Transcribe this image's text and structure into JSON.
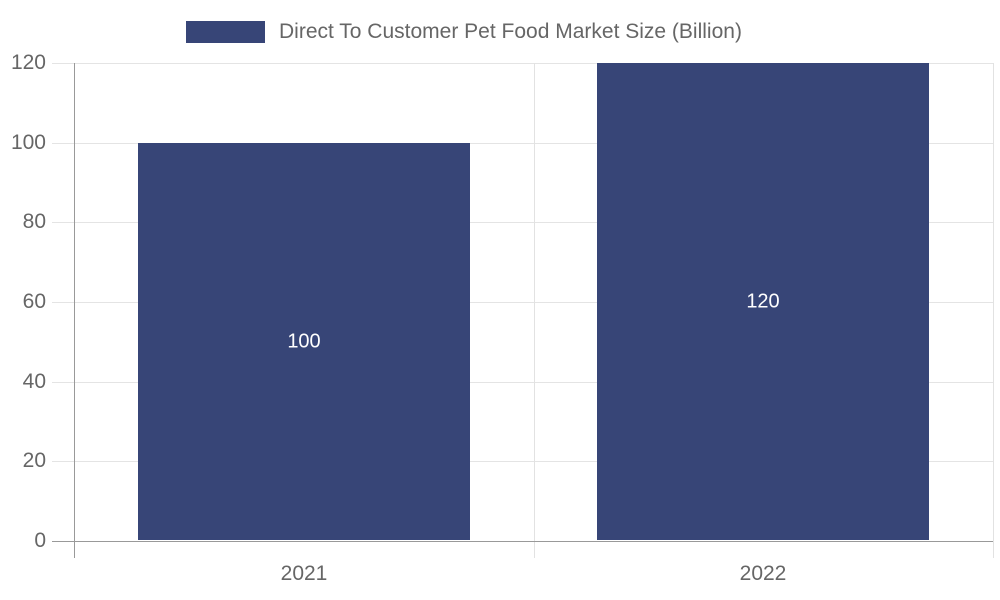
{
  "legend": {
    "label": "Direct To Customer Pet Food Market Size (Billion)"
  },
  "colors": {
    "bar": "#374577",
    "axis_line": "#999999",
    "gridline": "#e4e4e4",
    "boundary_line": "#e2e2e2",
    "tick_label": "#666666",
    "value_label": "#ffffff",
    "background": "#ffffff"
  },
  "chart_data": {
    "type": "bar",
    "title": "Direct To Customer Pet Food Market Size (Billion)",
    "series_name": "Direct To Customer Pet Food Market Size (Billion)",
    "categories": [
      "2021",
      "2022"
    ],
    "values": [
      100,
      120
    ],
    "data_labels": [
      "100",
      "120"
    ],
    "xlabel": "",
    "ylabel": "",
    "ylim": [
      0,
      120
    ],
    "ytick_step": 20,
    "ytick_labels": [
      "0",
      "20",
      "40",
      "60",
      "80",
      "100",
      "120"
    ],
    "grid": true,
    "legend_position": "top-center",
    "bar_label_position": "center-inside"
  }
}
